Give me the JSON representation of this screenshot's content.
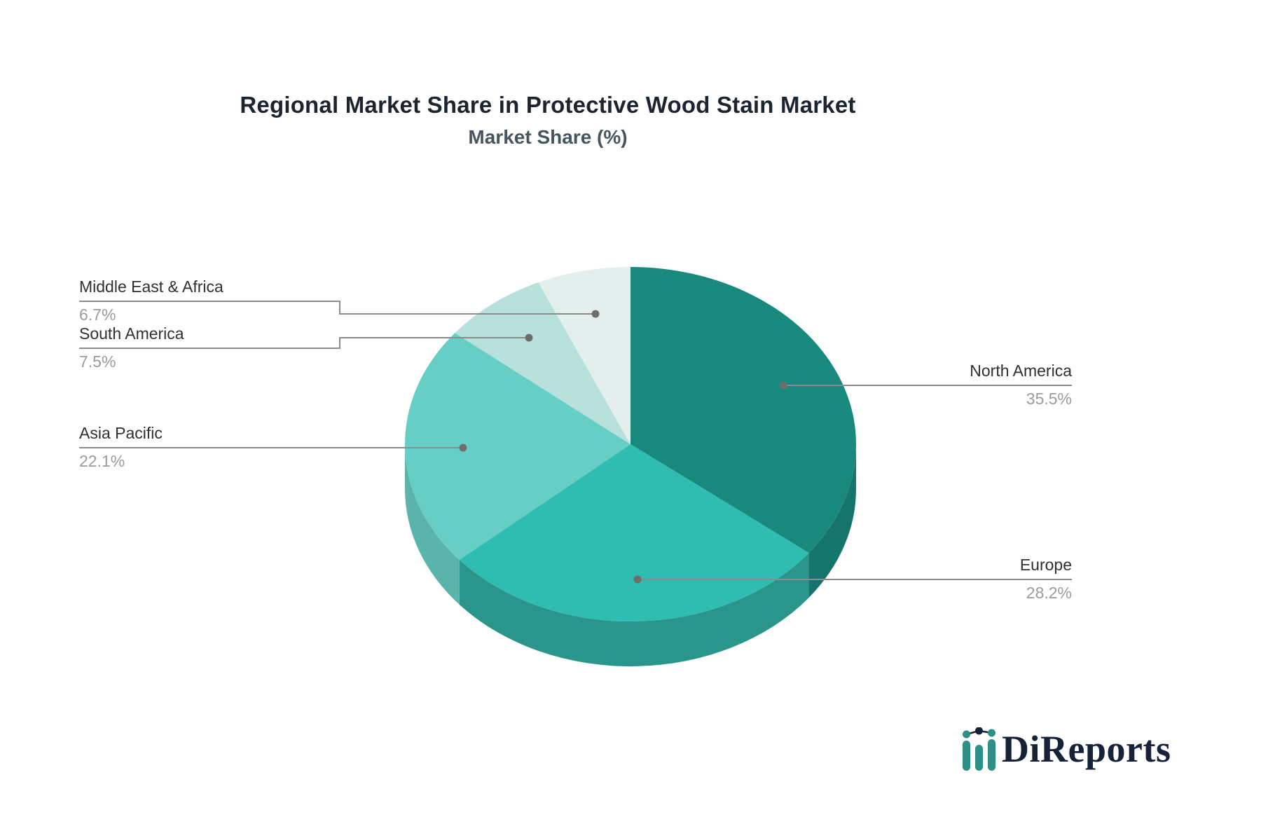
{
  "title": "Regional Market Share in Protective Wood Stain Market",
  "subtitle": "Market Share (%)",
  "chart_data": {
    "type": "pie",
    "title": "Regional Market Share in Protective Wood Stain Market",
    "subtitle": "Market Share (%)",
    "unit": "%",
    "style": "3d-pie",
    "start_angle_deg": 0,
    "direction": "clockwise",
    "legend": false,
    "segments": [
      {
        "label": "North America",
        "value": 35.5,
        "display": "35.5%",
        "color": "#19897E",
        "side_color": "#15756C"
      },
      {
        "label": "Europe",
        "value": 28.2,
        "display": "28.2%",
        "color": "#2EBDB0",
        "side_color": "#2A958B"
      },
      {
        "label": "Asia Pacific",
        "value": 22.1,
        "display": "22.1%",
        "color": "#67CEC5",
        "side_color": "#5BB4AB"
      },
      {
        "label": "South America",
        "value": 7.5,
        "display": "7.5%",
        "color": "#B9E1DB",
        "side_color": "#A3CCC6"
      },
      {
        "label": "Middle East & Africa",
        "value": 6.7,
        "display": "6.7%",
        "color": "#E2EFEC",
        "side_color": "#CBDEDA"
      }
    ]
  },
  "branding": {
    "logo_text": "DiReports",
    "logo_icon": "bar-chart-icon"
  },
  "colors": {
    "background": "#ffffff",
    "title": "#1c2430",
    "subtitle": "#47565e",
    "label_name": "#303030",
    "label_pct": "#9b9b9b",
    "connector_line": "#8c8c8c",
    "connector_dot": "#6e6e6e",
    "logo_text": "#152238",
    "logo_teal": "#2E8F86"
  }
}
